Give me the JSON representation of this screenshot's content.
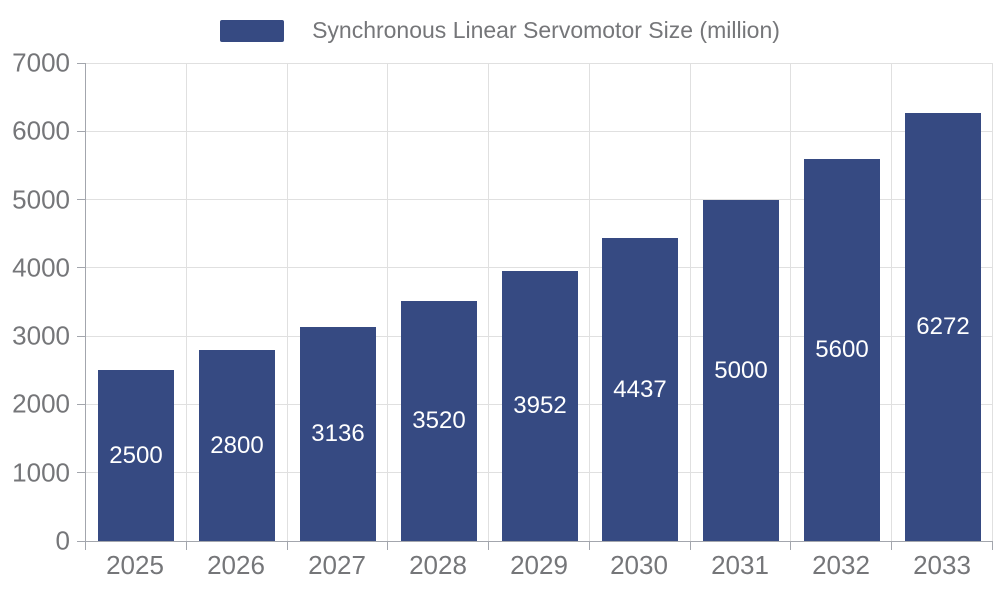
{
  "legend": {
    "label": "Synchronous Linear Servomotor Size (million)"
  },
  "chart_data": {
    "type": "bar",
    "title": "",
    "categories": [
      "2025",
      "2026",
      "2027",
      "2028",
      "2029",
      "2030",
      "2031",
      "2032",
      "2033"
    ],
    "series": [
      {
        "name": "Synchronous Linear Servomotor Size (million)",
        "values": [
          2500,
          2800,
          3136,
          3520,
          3952,
          4437,
          5000,
          5600,
          6272
        ]
      }
    ],
    "xlabel": "",
    "ylabel": "",
    "ylim": [
      0,
      7000
    ],
    "yticks": [
      0,
      1000,
      2000,
      3000,
      4000,
      5000,
      6000,
      7000
    ],
    "grid": true,
    "legend_position": "top",
    "value_label_position": "inside-center"
  },
  "colors": {
    "bar": "#364a82",
    "value_label": "#ffffff",
    "grid": "#e0e0e0",
    "axis": "#a3a6ad",
    "tick_label": "#757679",
    "legend_text": "#757679",
    "background": "#ffffff"
  }
}
